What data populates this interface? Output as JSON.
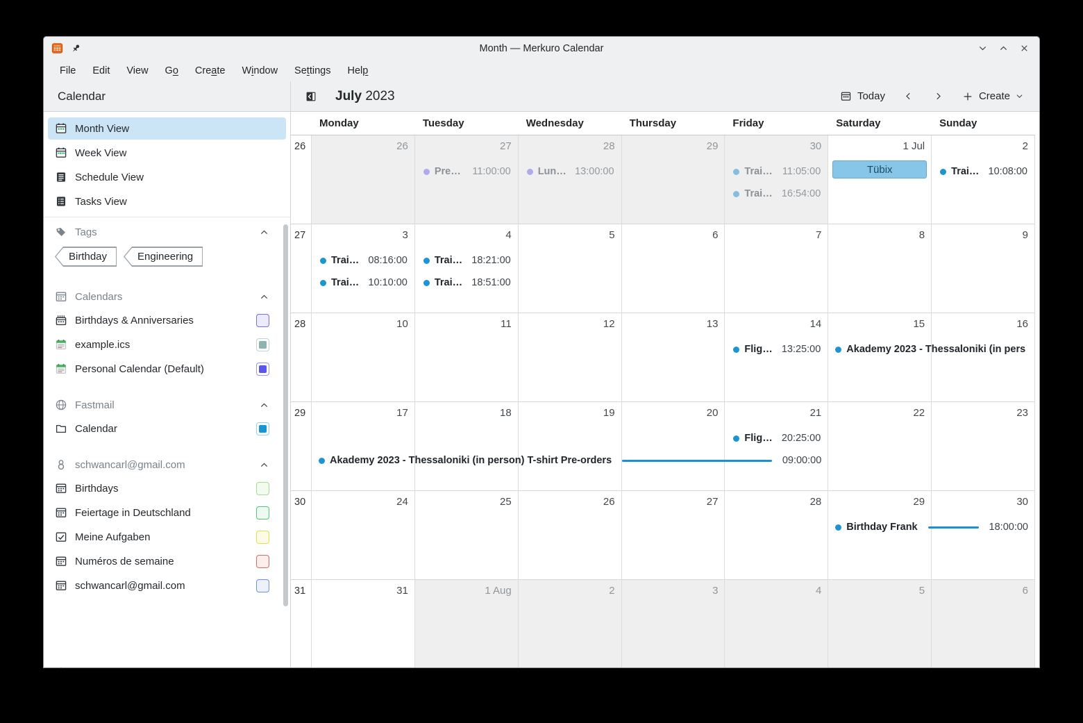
{
  "window": {
    "title": "Month — Merkuro Calendar",
    "controls": [
      {
        "name": "minimize-button",
        "icon": "chevron-down-icon"
      },
      {
        "name": "maximize-button",
        "icon": "chevron-up-icon"
      },
      {
        "name": "close-button",
        "icon": "close-icon"
      }
    ]
  },
  "menu": {
    "items": [
      {
        "label": "File",
        "u": -1
      },
      {
        "label": "Edit",
        "u": -1
      },
      {
        "label": "View",
        "u": -1
      },
      {
        "label": "Go",
        "u": 1
      },
      {
        "label": "Create",
        "u": 3
      },
      {
        "label": "Window",
        "u": 1
      },
      {
        "label": "Settings",
        "u": 2
      },
      {
        "label": "Help",
        "u": 3
      }
    ]
  },
  "toolbar": {
    "month": "July",
    "year": "2023",
    "today_label": "Today",
    "create_label": "Create"
  },
  "sidebar": {
    "title": "Calendar",
    "views": [
      {
        "label": "Month View",
        "icon": "month-view-icon",
        "selected": true
      },
      {
        "label": "Week View",
        "icon": "week-view-icon",
        "selected": false
      },
      {
        "label": "Schedule View",
        "icon": "schedule-view-icon",
        "selected": false
      },
      {
        "label": "Tasks View",
        "icon": "tasks-view-icon",
        "selected": false
      }
    ],
    "sections": [
      {
        "id": "tags",
        "label": "Tags",
        "icon": "tag-icon",
        "chips": [
          "Birthday",
          "Engineering"
        ]
      },
      {
        "id": "calendars",
        "label": "Calendars",
        "icon": "calendars-icon",
        "items": [
          {
            "label": "Birthdays & Anniversaries",
            "icon": "birthday-calendar-icon",
            "checkbox": {
              "checked": false,
              "border": "#7570e3",
              "fill": "#eceafb"
            }
          },
          {
            "label": "example.ics",
            "icon": "ics-calendar-icon",
            "checkbox": {
              "checked": true,
              "border": "#c0d4d2",
              "inner": "#8fb3b0"
            }
          },
          {
            "label": "Personal Calendar (Default)",
            "icon": "ics-calendar-icon",
            "checkbox": {
              "checked": true,
              "border": "#9a96f2",
              "inner": "#5c55e9"
            }
          }
        ]
      },
      {
        "id": "fastmail",
        "label": "Fastmail",
        "icon": "globe-icon",
        "items": [
          {
            "label": "Calendar",
            "icon": "folder-icon",
            "checkbox": {
              "checked": true,
              "border": "#8fd2f2",
              "inner": "#1796d6"
            }
          }
        ]
      },
      {
        "id": "gmail",
        "label": "schwancarl@gmail.com",
        "icon": "google-icon",
        "items": [
          {
            "label": "Birthdays",
            "icon": "grid-calendar-icon",
            "checkbox": {
              "checked": false,
              "border": "#a5dd8f",
              "fill": "#f3fbef"
            }
          },
          {
            "label": "Feiertage in Deutschland",
            "icon": "grid-calendar-icon",
            "checkbox": {
              "checked": false,
              "border": "#4fc878",
              "fill": "#eef9f2"
            }
          },
          {
            "label": "Meine Aufgaben",
            "icon": "task-calendar-icon",
            "checkbox": {
              "checked": false,
              "border": "#e0e04e",
              "fill": "#fcfce6"
            }
          },
          {
            "label": "Numéros de semaine",
            "icon": "grid-calendar-icon",
            "checkbox": {
              "checked": false,
              "border": "#e4695c",
              "fill": "#fdeeec"
            }
          },
          {
            "label": "schwancarl@gmail.com",
            "icon": "grid-calendar-icon",
            "checkbox": {
              "checked": false,
              "border": "#6d92dd",
              "fill": "#ecf1fb"
            }
          }
        ]
      }
    ],
    "partial_row": {
      "label": "S",
      "icon": "account-icon"
    }
  },
  "calendar_grid": {
    "day_headers": [
      "Monday",
      "Tuesday",
      "Wednesday",
      "Thursday",
      "Friday",
      "Saturday",
      "Sunday"
    ],
    "weeks": [
      {
        "num": "26",
        "days": [
          {
            "n": "26",
            "out": true
          },
          {
            "n": "27",
            "out": true,
            "ev": [
              {
                "t": "Pre…",
                "time": "11:00:00",
                "c": "purple"
              }
            ]
          },
          {
            "n": "28",
            "out": true,
            "ev": [
              {
                "t": "Lun…",
                "time": "13:00:00",
                "c": "purple"
              }
            ]
          },
          {
            "n": "29",
            "out": true
          },
          {
            "n": "30",
            "out": true,
            "ev": [
              {
                "t": "Trai…",
                "time": "11:05:00",
                "c": "blue"
              },
              {
                "t": "Trai…",
                "time": "16:54:00",
                "c": "blue"
              }
            ]
          },
          {
            "n": "1 Jul",
            "pill": "Tübix"
          },
          {
            "n": "2",
            "ev": [
              {
                "t": "Trai…",
                "time": "10:08:00",
                "c": "blue"
              }
            ]
          }
        ]
      },
      {
        "num": "27",
        "days": [
          {
            "n": "3",
            "ev": [
              {
                "t": "Trai…",
                "time": "08:16:00",
                "c": "blue"
              },
              {
                "t": "Trai…",
                "time": "10:10:00",
                "c": "blue"
              }
            ]
          },
          {
            "n": "4",
            "ev": [
              {
                "t": "Trai…",
                "time": "18:21:00",
                "c": "blue"
              },
              {
                "t": "Trai…",
                "time": "18:51:00",
                "c": "blue"
              }
            ]
          },
          {
            "n": "5"
          },
          {
            "n": "6"
          },
          {
            "n": "7"
          },
          {
            "n": "8"
          },
          {
            "n": "9"
          }
        ]
      },
      {
        "num": "28",
        "days": [
          {
            "n": "10"
          },
          {
            "n": "11"
          },
          {
            "n": "12"
          },
          {
            "n": "13"
          },
          {
            "n": "14",
            "ev": [
              {
                "t": "Flig…",
                "time": "13:25:00",
                "c": "blue"
              }
            ]
          },
          {
            "n": "15"
          },
          {
            "n": "16"
          }
        ],
        "spans": [
          {
            "title": "Akademy 2023 - Thessaloniki (in pers",
            "startCol": 5,
            "endCol": 6,
            "slot": 0,
            "clip": true
          }
        ]
      },
      {
        "num": "29",
        "days": [
          {
            "n": "17"
          },
          {
            "n": "18"
          },
          {
            "n": "19"
          },
          {
            "n": "20"
          },
          {
            "n": "21",
            "ev": [
              {
                "t": "Flig…",
                "time": "20:25:00",
                "c": "blue"
              }
            ]
          },
          {
            "n": "22"
          },
          {
            "n": "23"
          }
        ],
        "spans": [
          {
            "title": "Akademy 2023 - Thessaloniki (in person) T-shirt Pre-orders",
            "startCol": 0,
            "endCol": 4,
            "slot": 1,
            "time": "09:00:00",
            "line": true
          }
        ]
      },
      {
        "num": "30",
        "days": [
          {
            "n": "24"
          },
          {
            "n": "25"
          },
          {
            "n": "26"
          },
          {
            "n": "27"
          },
          {
            "n": "28"
          },
          {
            "n": "29"
          },
          {
            "n": "30"
          }
        ],
        "spans": [
          {
            "title": "Birthday Frank",
            "startCol": 5,
            "endCol": 6,
            "slot": 0,
            "time": "18:00:00",
            "line": true
          }
        ]
      },
      {
        "num": "31",
        "days": [
          {
            "n": "31"
          },
          {
            "n": "1 Aug",
            "out": true
          },
          {
            "n": "2",
            "out": true
          },
          {
            "n": "3",
            "out": true
          },
          {
            "n": "4",
            "out": true
          },
          {
            "n": "5",
            "out": true
          },
          {
            "n": "6",
            "out": true
          }
        ]
      }
    ]
  },
  "colors": {
    "chrome_bg": "#eff0f1",
    "selection": "#cbe5f7",
    "event_blue": "#1d95d3",
    "event_blue_faded": "#85bedc",
    "event_purple": "#9a95e8",
    "event_purple_faded": "#aeaaec",
    "span_line": "#1b8fd2",
    "pill_bg": "#88c6e9",
    "pill_border": "#66a8cf",
    "pill_text": "#1c4a63",
    "out_month_bg": "#efefef"
  }
}
